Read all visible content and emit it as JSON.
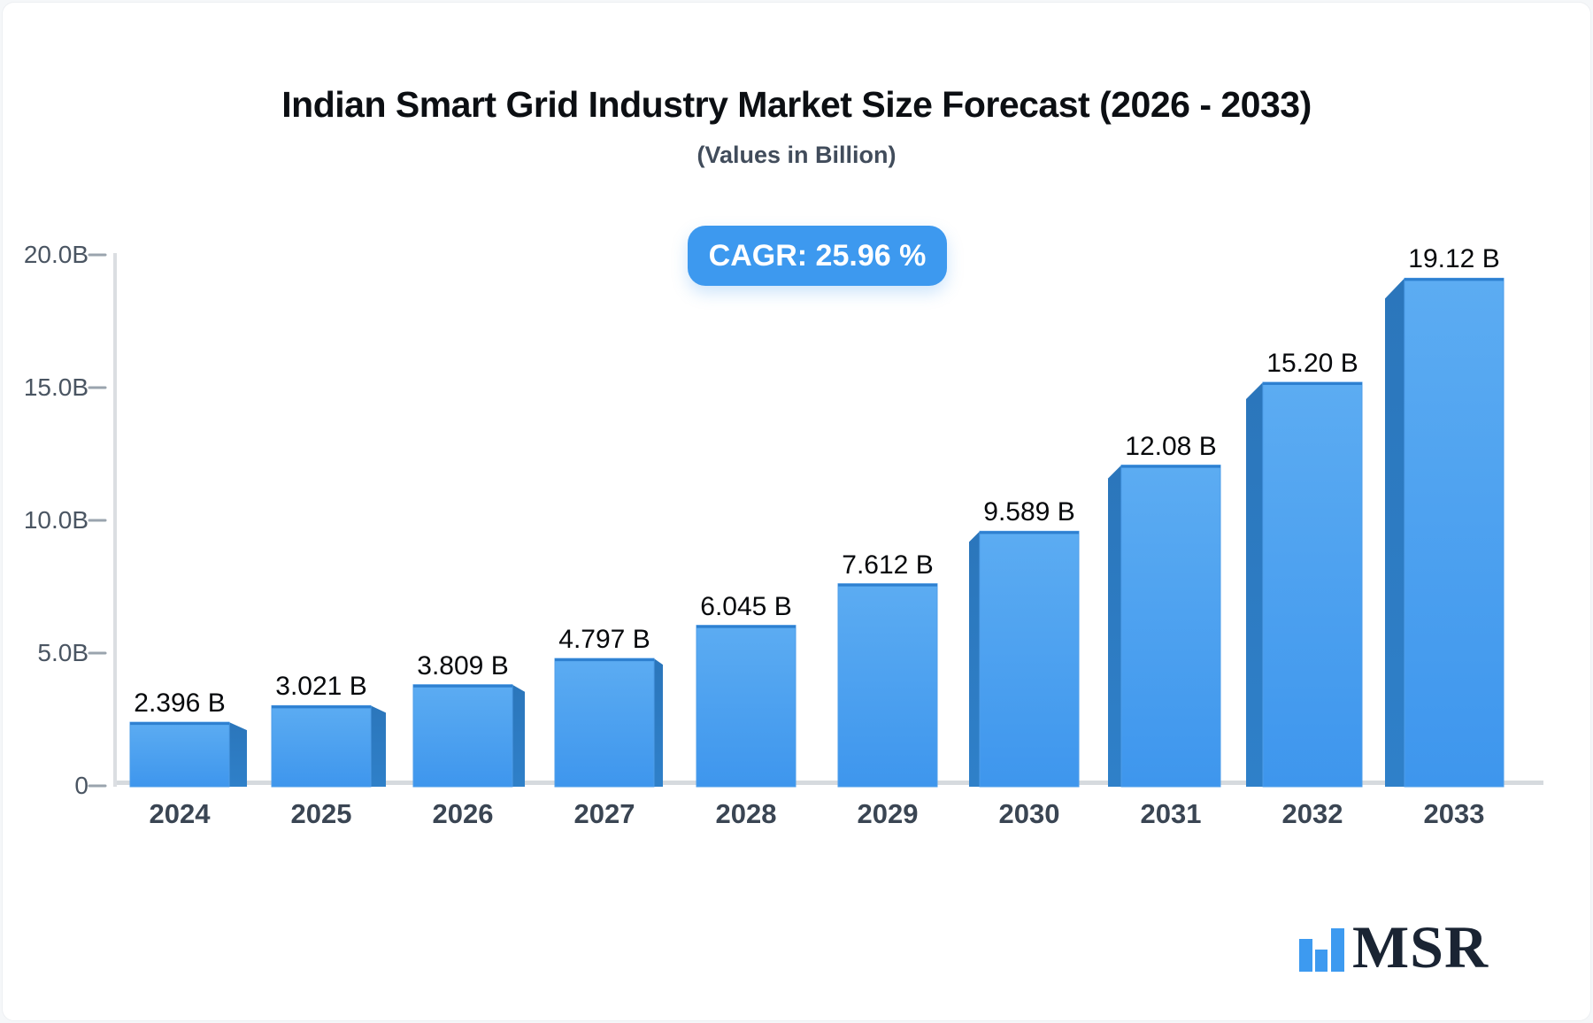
{
  "header": {
    "title": "Indian Smart Grid Industry Market Size Forecast (2026 - 2033)",
    "subtitle": "(Values in Billion)"
  },
  "badge": {
    "label": "CAGR: 25.96 %"
  },
  "chart_data": {
    "type": "bar",
    "title": "Indian Smart Grid Industry Market Size Forecast (2026 - 2033)",
    "subtitle": "(Values in Billion)",
    "categories": [
      "2024",
      "2025",
      "2026",
      "2027",
      "2028",
      "2029",
      "2030",
      "2031",
      "2032",
      "2033"
    ],
    "values": [
      2.396,
      3.021,
      3.809,
      4.797,
      6.045,
      7.612,
      9.589,
      12.08,
      15.2,
      19.12
    ],
    "value_labels": [
      "2.396 B",
      "3.021 B",
      "3.809 B",
      "4.797 B",
      "6.045 B",
      "7.612 B",
      "9.589 B",
      "12.08 B",
      "15.20 B",
      "19.12 B"
    ],
    "unit": "Billion",
    "cagr": "25.96 %",
    "ylim": [
      0,
      20
    ],
    "y_ticks": [
      {
        "label": "20.0B",
        "value": 20
      },
      {
        "label": "15.0B",
        "value": 15
      },
      {
        "label": "10.0B",
        "value": 10
      },
      {
        "label": "5.0B",
        "value": 5
      },
      {
        "label": "0",
        "value": 0
      }
    ],
    "grid": "off",
    "legend": "none",
    "bar_color_top": "#5cacf2",
    "bar_color_bottom": "#3e96ed",
    "bar_side_color": "#2e7cc2",
    "bar_top_edge_color": "#2e80d0",
    "axis_color": "#d6dade",
    "depth3d": [
      20,
      17,
      14,
      10,
      0,
      0,
      -12,
      -15,
      -19,
      -22
    ]
  },
  "logo": {
    "text": "MSR",
    "bar_color": "#3d9af0"
  }
}
